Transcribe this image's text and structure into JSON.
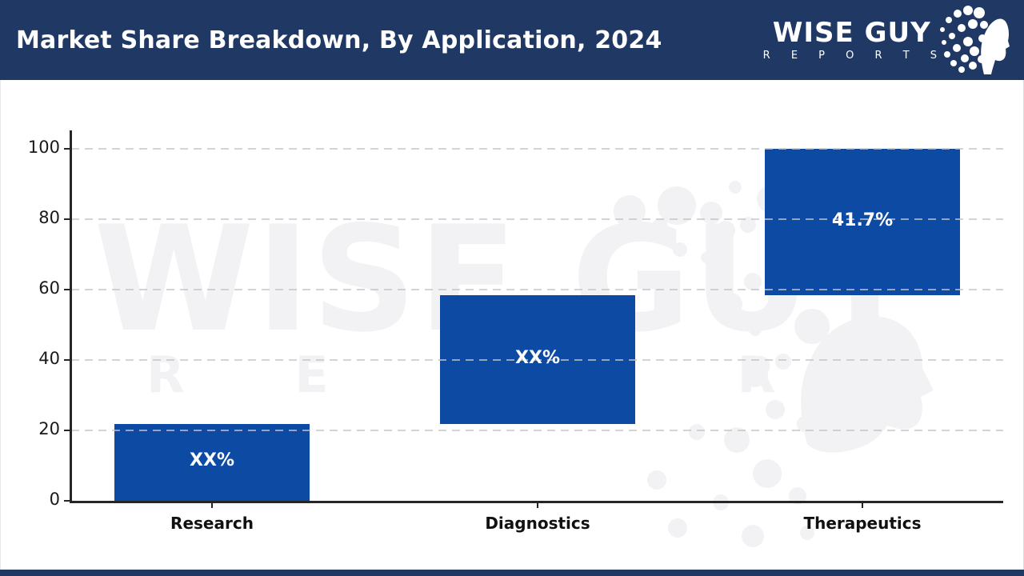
{
  "header": {
    "title": "Market Share Breakdown, By Application, 2024",
    "logo": {
      "line1": "WISE GUY",
      "line2": "R E P O R T S"
    }
  },
  "watermark": {
    "line1": "WISE GUY",
    "line2": "R E P O R T S"
  },
  "colors": {
    "header_bg": "#1f3864",
    "footer_bg": "#1f3864",
    "bar_blue": "#0c4aa4",
    "axis": "#262626",
    "gridline": "#c5c5c5",
    "watermark": "#f2f2f4",
    "bar_label": "#ffffff",
    "title_text": "#ffffff"
  },
  "chart_data": {
    "type": "bar",
    "subtype": "floating_segment_breakdown",
    "title": "Market Share Breakdown, By Application, 2024",
    "categories": [
      "Research",
      "Diagnostics",
      "Therapeutics"
    ],
    "segments": [
      {
        "category": "Research",
        "start": 0,
        "end": 21.8,
        "label": "XX%"
      },
      {
        "category": "Diagnostics",
        "start": 21.8,
        "end": 58.3,
        "label": "XX%"
      },
      {
        "category": "Therapeutics",
        "start": 58.3,
        "end": 100,
        "label": "41.7%"
      }
    ],
    "yticks": [
      0,
      20,
      40,
      60,
      80,
      100
    ],
    "ylim": [
      0,
      106
    ],
    "xlabel": "",
    "ylabel": "",
    "grid": "horizontal-dashed-over-bars",
    "legend": "none",
    "bar_color": "#0c4aa4",
    "bar_label_color": "#ffffff",
    "units": "%"
  }
}
